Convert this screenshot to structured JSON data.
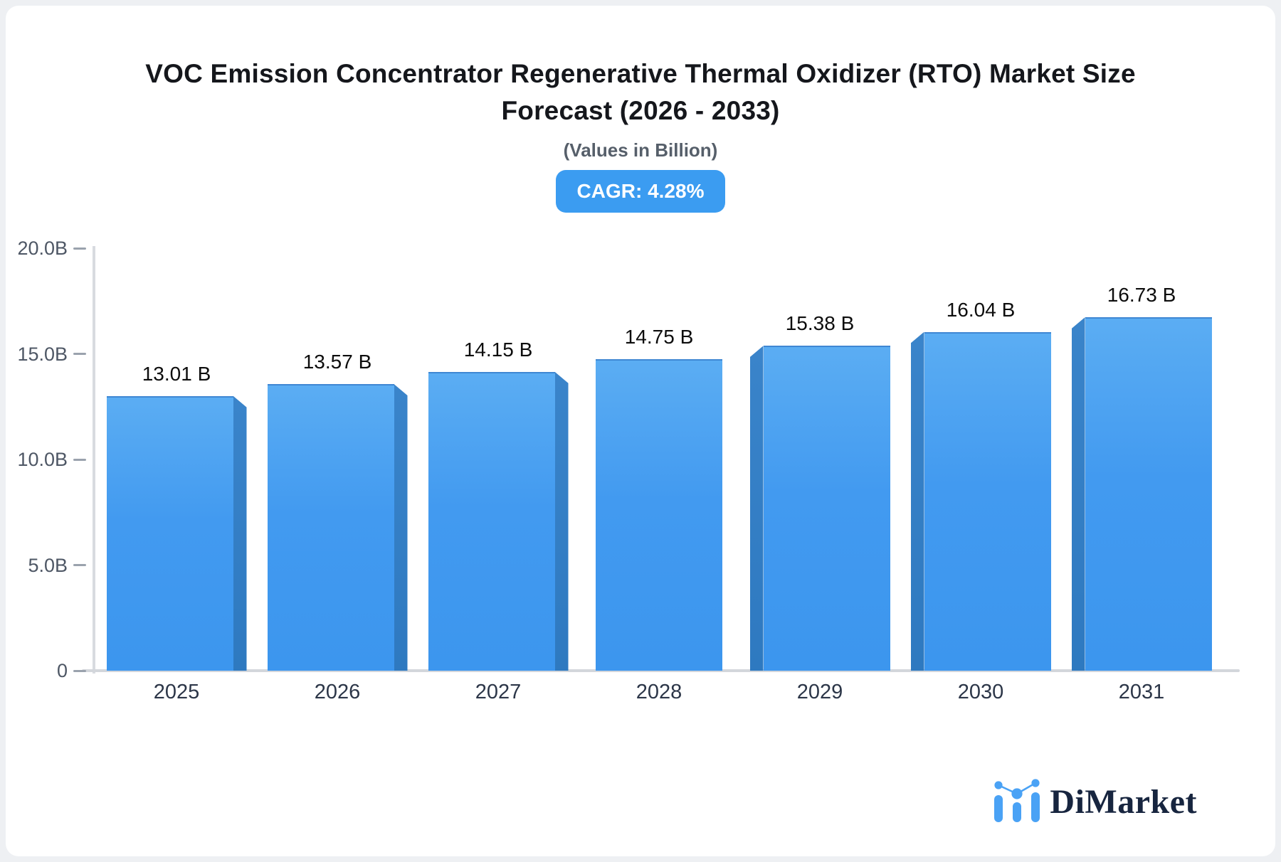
{
  "header": {
    "title": "VOC Emission Concentrator Regenerative Thermal Oxidizer (RTO) Market Size Forecast (2026 - 2033)",
    "subtitle": "(Values in Billion)",
    "cagr_badge": "CAGR: 4.28%"
  },
  "chart_data": {
    "type": "bar",
    "title": "VOC Emission Concentrator Regenerative Thermal Oxidizer (RTO) Market Size Forecast (2026 - 2033)",
    "subtitle": "(Values in Billion)",
    "unit": "Billion",
    "cagr_percent": 4.28,
    "categories": [
      "2025",
      "2026",
      "2027",
      "2028",
      "2029",
      "2030",
      "2031"
    ],
    "values": [
      13.01,
      13.57,
      14.15,
      14.75,
      15.38,
      16.04,
      16.73
    ],
    "bar_labels": [
      "13.01 B",
      "13.57 B",
      "14.15 B",
      "14.75 B",
      "15.38 B",
      "16.04 B",
      "16.73 B"
    ],
    "xlabel": "",
    "ylabel": "",
    "ylim": [
      0,
      20
    ],
    "yticks": [
      {
        "value": 0,
        "label": "0"
      },
      {
        "value": 5,
        "label": "5.0B"
      },
      {
        "value": 10,
        "label": "10.0B"
      },
      {
        "value": 15,
        "label": "15.0B"
      },
      {
        "value": 20,
        "label": "20.0B"
      }
    ],
    "grid": false,
    "legend": null,
    "bar_style": "3d-extruded"
  },
  "colors": {
    "bar_face": "#429af0",
    "bar_face_light": "#5badf3",
    "bar_side": "#2f7dc3",
    "badge_background": "#3b9cf1",
    "axis": "#d3d6db",
    "y_tick_label": "#4e5765",
    "x_axis_label": "#2c3648",
    "logo_blue": "#4aa2f5",
    "logo_navy": "#17253f"
  },
  "footer": {
    "brand": "DiMarket",
    "logo_icon": "bar-chart-icon"
  }
}
